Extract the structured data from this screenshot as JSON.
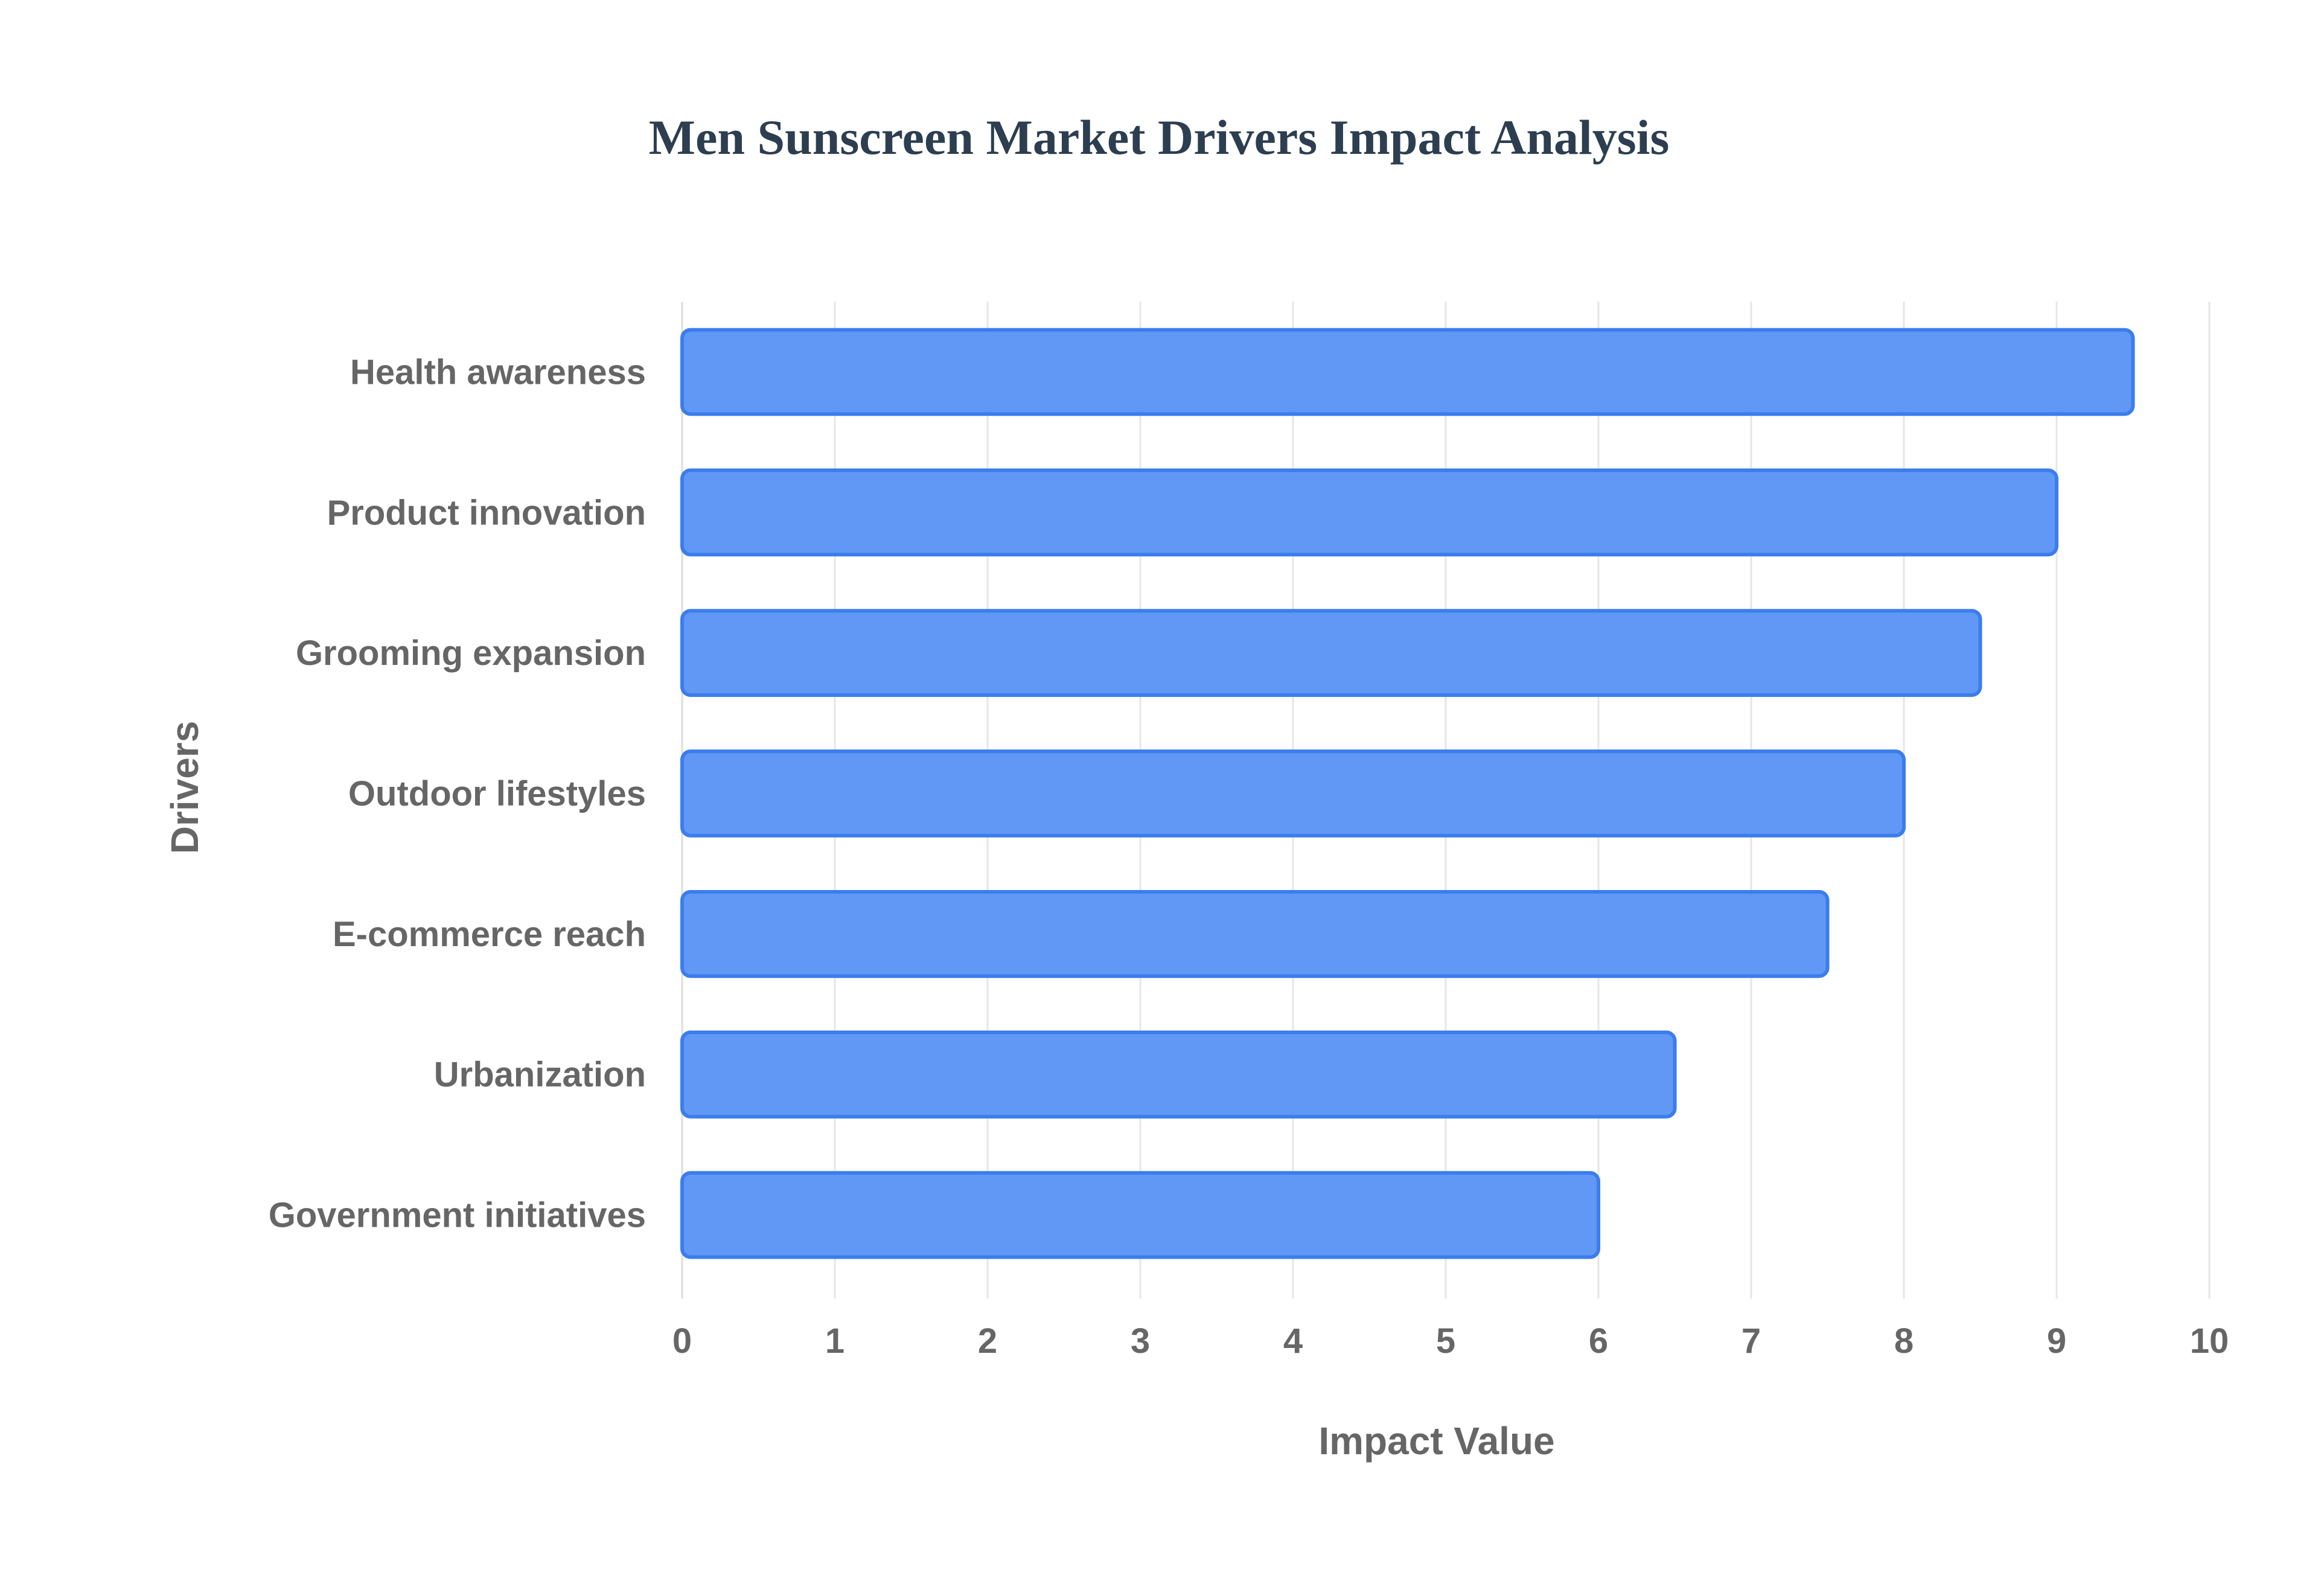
{
  "chart_data": {
    "type": "bar",
    "orientation": "horizontal",
    "title": "Men Sunscreen Market Drivers Impact Analysis",
    "xlabel": "Impact Value",
    "ylabel": "Drivers",
    "categories": [
      "Health awareness",
      "Product innovation",
      "Grooming expansion",
      "Outdoor lifestyles",
      "E-commerce reach",
      "Urbanization",
      "Government initiatives"
    ],
    "values": [
      9.5,
      9.0,
      8.5,
      8.0,
      7.5,
      6.5,
      6.0
    ],
    "xlim": [
      0,
      10
    ],
    "x_ticks": [
      0,
      1,
      2,
      3,
      4,
      5,
      6,
      7,
      8,
      9,
      10
    ],
    "grid": true,
    "legend": false,
    "colors": {
      "bar_fill": "#6198f5",
      "bar_stroke": "#3b7ded",
      "title": "#2c3e50",
      "labels": "#666666"
    }
  }
}
